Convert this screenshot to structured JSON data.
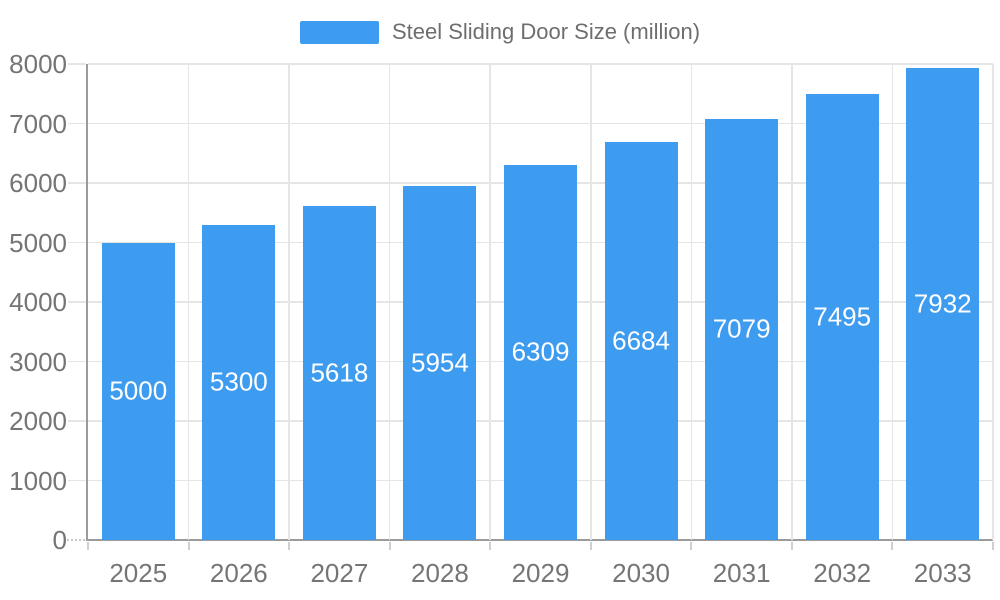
{
  "legend": {
    "label": "Steel Sliding Door Size (million)"
  },
  "colors": {
    "bar": "#3d9bf0",
    "bar_label_text": "#ffffff",
    "axis_label_text": "#757575",
    "legend_text": "#6e6e6e",
    "gridline": "#e5e5e5",
    "axis_line": "#9b9b9b",
    "tick": "#cfcfcf"
  },
  "chart_data": {
    "type": "bar",
    "title": "Steel Sliding Door Size (million)",
    "categories": [
      "2025",
      "2026",
      "2027",
      "2028",
      "2029",
      "2030",
      "2031",
      "2032",
      "2033"
    ],
    "series": [
      {
        "name": "Steel Sliding Door Size (million)",
        "color": "#3d9bf0",
        "values": [
          5000,
          5300,
          5618,
          5954,
          6309,
          6684,
          7079,
          7495,
          7932
        ]
      }
    ],
    "bar_value_labels": [
      "5000",
      "5300",
      "5618",
      "5954",
      "6309",
      "6684",
      "7079",
      "7495",
      "7932"
    ],
    "xlabel": "",
    "ylabel": "",
    "ylim": [
      0,
      8000
    ],
    "ytick_step": 1000,
    "ytick_labels": [
      "0",
      "1000",
      "2000",
      "3000",
      "4000",
      "5000",
      "6000",
      "7000",
      "8000"
    ],
    "grid": true,
    "legend_position": "top",
    "value_labels_inside_bars": true
  }
}
